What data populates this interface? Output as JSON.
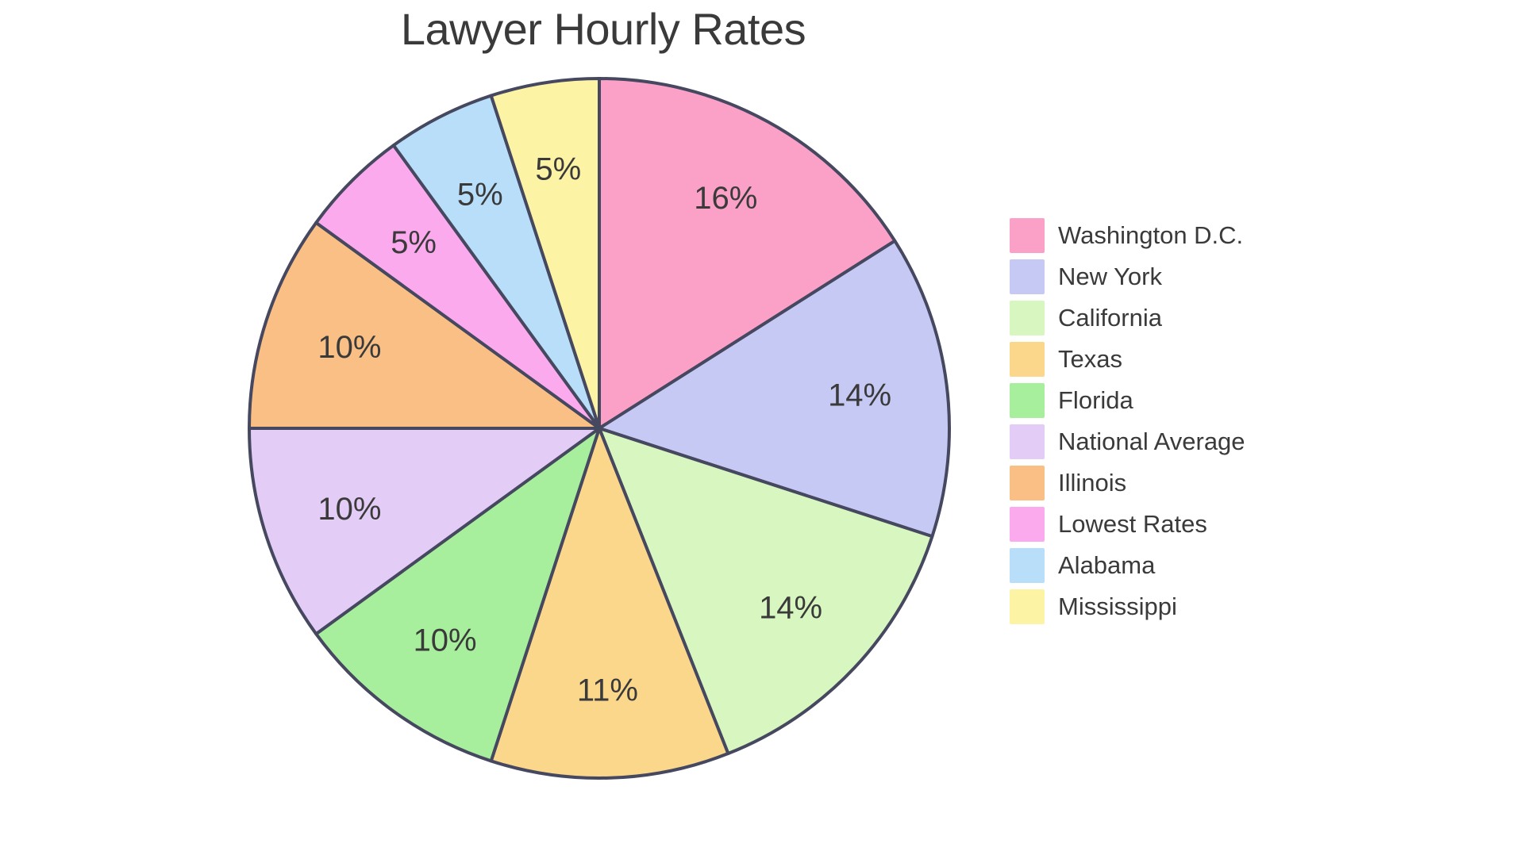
{
  "chart_data": {
    "type": "pie",
    "title": "Lawyer Hourly Rates",
    "start_angle_deg_clockwise_from_top": 0,
    "direction": "clockwise",
    "legend_position": "right",
    "stroke_color": "#464860",
    "label_color": "#3a3a3a",
    "title_color": "#3a3a3a",
    "slices": [
      {
        "label": "Washington D.C.",
        "percent": 16,
        "percent_label": "16%",
        "color": "#FBA1C8"
      },
      {
        "label": "New York",
        "percent": 14,
        "percent_label": "14%",
        "color": "#C7C9F5"
      },
      {
        "label": "California",
        "percent": 14,
        "percent_label": "14%",
        "color": "#D8F6BF"
      },
      {
        "label": "Texas",
        "percent": 11,
        "percent_label": "11%",
        "color": "#FBD78B"
      },
      {
        "label": "Florida",
        "percent": 10,
        "percent_label": "10%",
        "color": "#A8EF9D"
      },
      {
        "label": "National Average",
        "percent": 10,
        "percent_label": "10%",
        "color": "#E3CDF6"
      },
      {
        "label": "Illinois",
        "percent": 10,
        "percent_label": "10%",
        "color": "#F9BF85"
      },
      {
        "label": "Lowest Rates",
        "percent": 5,
        "percent_label": "5%",
        "color": "#FCAAEE"
      },
      {
        "label": "Alabama",
        "percent": 5,
        "percent_label": "5%",
        "color": "#B8DEF9"
      },
      {
        "label": "Mississippi",
        "percent": 5,
        "percent_label": "5%",
        "color": "#FDF3A4"
      }
    ]
  }
}
